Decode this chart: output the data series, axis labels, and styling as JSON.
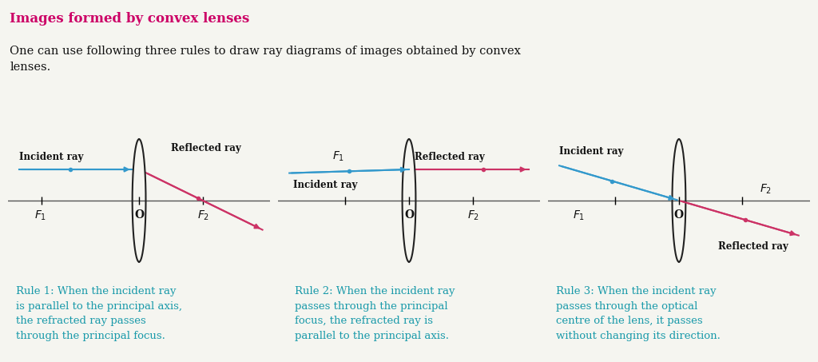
{
  "background_color": "#f5f5f0",
  "title": "Images formed by convex lenses",
  "title_color": "#cc0066",
  "subtitle": "One can use following three rules to draw ray diagrams of images obtained by convex\nlenses.",
  "subtitle_color": "#111111",
  "rule_texts": [
    "Rule 1: When the incident ray\nis parallel to the principal axis,\nthe refracted ray passes\nthrough the principal focus.",
    "Rule 2: When the incident ray\npasses through the principal\nfocus, the refracted ray is\nparallel to the principal axis.",
    "Rule 3: When the incident ray\npasses through the optical\ncentre of the lens, it passes\nwithout changing its direction."
  ],
  "rule_text_color": "#1a9aaa",
  "lens_color": "#222222",
  "axis_color": "#555555",
  "incident_ray_color": "#3399cc",
  "reflected_ray_color": "#cc3366",
  "label_color": "#111111"
}
